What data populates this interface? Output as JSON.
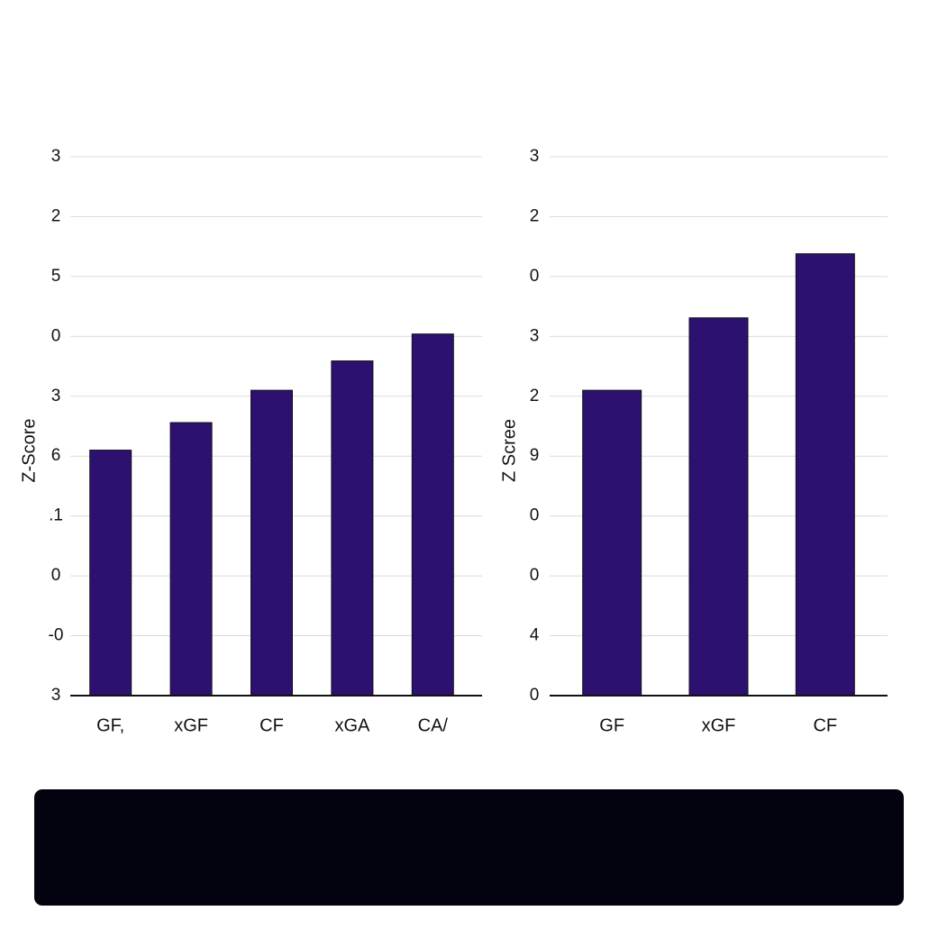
{
  "chart_data": [
    {
      "type": "bar",
      "ylabel": "Z-Score",
      "categories": [
        "GF,",
        "xGF",
        "CF",
        "xGA",
        "CA/"
      ],
      "values": [
        4.1,
        4.56,
        5.1,
        5.59,
        6.04
      ],
      "color": "#2d1170",
      "ylim": [
        0,
        9
      ],
      "yticks": [
        {
          "value": 0,
          "label": "3"
        },
        {
          "value": 1,
          "label": "-0"
        },
        {
          "value": 2,
          "label": "0"
        },
        {
          "value": 3,
          "label": ".1"
        },
        {
          "value": 4,
          "label": "6"
        },
        {
          "value": 5,
          "label": "3"
        },
        {
          "value": 6,
          "label": "0"
        },
        {
          "value": 7,
          "label": "5"
        },
        {
          "value": 8,
          "label": "2"
        },
        {
          "value": 9,
          "label": "3"
        }
      ],
      "grid": true
    },
    {
      "type": "bar",
      "ylabel": "Z Scree",
      "categories": [
        "GF",
        "xGF",
        "CF"
      ],
      "values": [
        5.1,
        6.31,
        7.38
      ],
      "color": "#2d1170",
      "ylim": [
        0,
        9
      ],
      "yticks": [
        0,
        {
          "value": 1,
          "label": "4"
        },
        {
          "value": 2,
          "label": "0"
        },
        {
          "value": 3,
          "label": "0"
        },
        {
          "value": 4,
          "label": "9"
        },
        {
          "value": 5,
          "label": "2"
        },
        {
          "value": 6,
          "label": "3"
        },
        {
          "value": 7,
          "label": "0"
        },
        {
          "value": 8,
          "label": "2"
        },
        {
          "value": 9,
          "label": "3"
        }
      ],
      "grid": true
    }
  ]
}
